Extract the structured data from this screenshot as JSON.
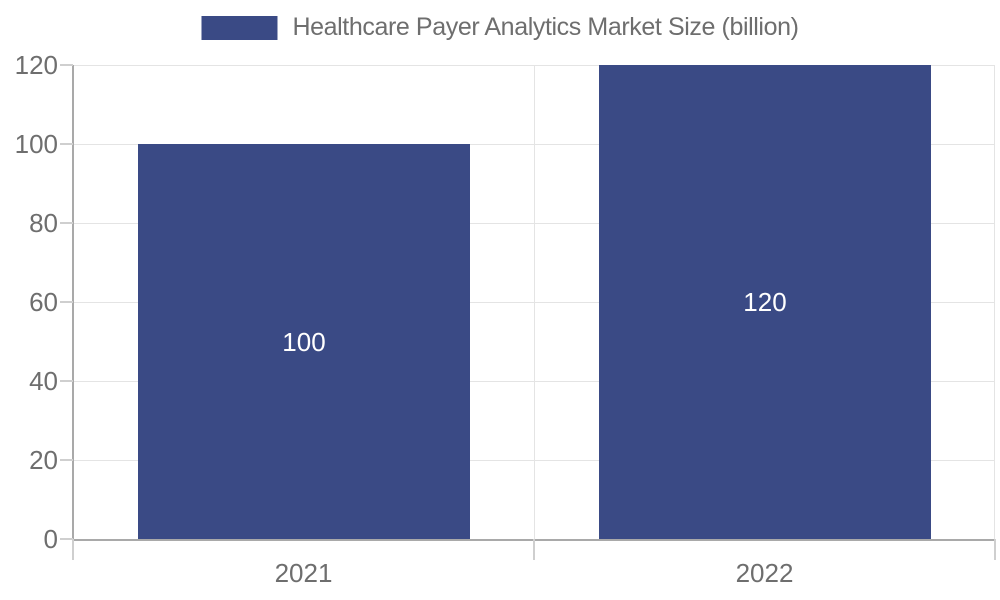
{
  "legend": {
    "label": "Healthcare Payer Analytics Market Size (billion)"
  },
  "chart_data": {
    "type": "bar",
    "title": "",
    "xlabel": "",
    "ylabel": "",
    "categories": [
      "2021",
      "2022"
    ],
    "series": [
      {
        "name": "Healthcare Payer Analytics Market Size (billion)",
        "values": [
          100,
          120
        ],
        "value_labels": [
          "100",
          "120"
        ]
      }
    ],
    "ylim": [
      0,
      120
    ],
    "yticks": [
      0,
      20,
      40,
      60,
      80,
      100,
      120
    ],
    "grid": true,
    "value_labels_position": "inside-center",
    "legend_position": "top-center",
    "colors": {
      "bar": "#3a4a85",
      "bar_label": "#ffffff",
      "grid": "#e4e4e4",
      "axis": "#a9a9a9",
      "tick": "#cfcfcf",
      "text": "#6e6e6e",
      "background": "#ffffff"
    }
  }
}
